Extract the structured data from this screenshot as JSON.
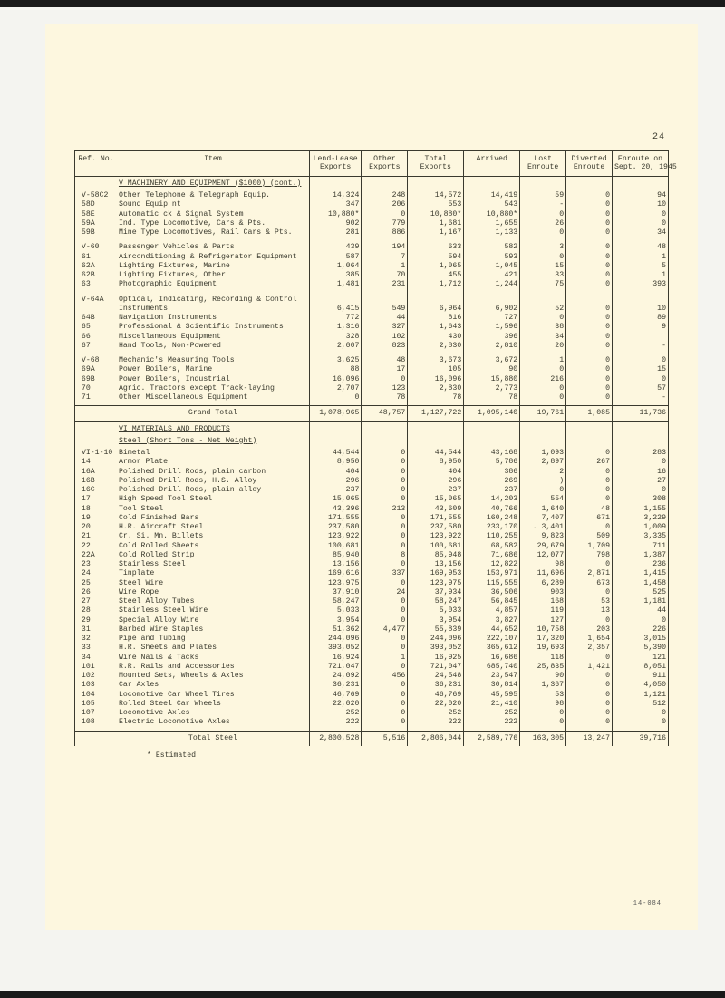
{
  "page_number": "24",
  "doc_no": "14-084",
  "footnote": "* Estimated",
  "columns": [
    "Ref. No.",
    "Item",
    "Lend-Lease\nExports",
    "Other\nExports",
    "Total\nExports",
    "Arrived",
    "Lost\nEnroute",
    "Diverted\nEnroute",
    "Enroute on\nSept. 20, 1945"
  ],
  "section1": "V MACHINERY AND EQUIPMENT ($1000) (cont.)",
  "group1": [
    {
      "ref": "V-58C2",
      "item": "Other Telephone & Telegraph Equip.",
      "v": [
        "14,324",
        "248",
        "14,572",
        "14,419",
        "59",
        "0",
        "94"
      ]
    },
    {
      "ref": "58D",
      "item": "Sound Equip nt",
      "v": [
        "347",
        "206",
        "553",
        "543",
        "-",
        "0",
        "10"
      ]
    },
    {
      "ref": "58E",
      "item": "Automatic    ck & Signal System",
      "v": [
        "10,880*",
        "0",
        "10,880*",
        "10,880*",
        "0",
        "0",
        "0"
      ]
    },
    {
      "ref": "59A",
      "item": "Ind. Type Locomotive, Cars & Pts.",
      "v": [
        "902",
        "779",
        "1,681",
        "1,655",
        "26",
        "0",
        "0"
      ]
    },
    {
      "ref": "59B",
      "item": "Mine Type Locomotives, Rail Cars & Pts.",
      "v": [
        "281",
        "886",
        "1,167",
        "1,133",
        "0",
        "0",
        "34"
      ]
    }
  ],
  "group2": [
    {
      "ref": "V-60",
      "item": "Passenger Vehicles & Parts",
      "v": [
        "439",
        "194",
        "633",
        "582",
        "3",
        "0",
        "48"
      ]
    },
    {
      "ref": "61",
      "item": "Airconditioning & Refrigerator Equipment",
      "v": [
        "587",
        "7",
        "594",
        "593",
        "0",
        "0",
        "1"
      ]
    },
    {
      "ref": "62A",
      "item": "Lighting Fixtures, Marine",
      "v": [
        "1,064",
        "1",
        "1,065",
        "1,045",
        "15",
        "0",
        "5"
      ]
    },
    {
      "ref": "62B",
      "item": "Lighting Fixtures, Other",
      "v": [
        "385",
        "70",
        "455",
        "421",
        "33",
        "0",
        "1"
      ]
    },
    {
      "ref": "63",
      "item": "Photographic Equipment",
      "v": [
        "1,481",
        "231",
        "1,712",
        "1,244",
        "75",
        "0",
        "393"
      ]
    }
  ],
  "group3_head": {
    "ref": "V-64A",
    "item": "Optical, Indicating, Recording & Control"
  },
  "group3": [
    {
      "ref": "",
      "item": "  Instruments",
      "v": [
        "6,415",
        "549",
        "6,964",
        "6,902",
        "52",
        "0",
        "10"
      ]
    },
    {
      "ref": "64B",
      "item": "Navigation Instruments",
      "v": [
        "772",
        "44",
        "816",
        "727",
        "0",
        "0",
        "89"
      ]
    },
    {
      "ref": "65",
      "item": "Professional & Scientific Instruments",
      "v": [
        "1,316",
        "327",
        "1,643",
        "1,596",
        "38",
        "0",
        "9"
      ]
    },
    {
      "ref": "66",
      "item": "Miscellaneous Equipment",
      "v": [
        "328",
        "102",
        "430",
        "396",
        "34",
        "0",
        ""
      ]
    },
    {
      "ref": "67",
      "item": "Hand Tools, Non-Powered",
      "v": [
        "2,007",
        "823",
        "2,830",
        "2,810",
        "20",
        "0",
        "-"
      ]
    }
  ],
  "group4": [
    {
      "ref": "V-68",
      "item": "Mechanic's Measuring Tools",
      "v": [
        "3,625",
        "48",
        "3,673",
        "3,672",
        "1",
        "0",
        "0"
      ]
    },
    {
      "ref": "69A",
      "item": "Power Boilers, Marine",
      "v": [
        "88",
        "17",
        "105",
        "90",
        "0",
        "0",
        "15"
      ]
    },
    {
      "ref": "69B",
      "item": "Power Boilers, Industrial",
      "v": [
        "16,096",
        "0",
        "16,096",
        "15,880",
        "216",
        "0",
        "0"
      ]
    },
    {
      "ref": "70",
      "item": "Agric. Tractors except Track-laying",
      "v": [
        "2,707",
        "123",
        "2,830",
        "2,773",
        "0",
        "0",
        "57"
      ]
    },
    {
      "ref": "71",
      "item": "Other Miscellaneous Equipment",
      "v": [
        "0",
        "78",
        "78",
        "78",
        "0",
        "0",
        "-"
      ]
    }
  ],
  "grand_total": {
    "label": "Grand Total",
    "v": [
      "1,078,965",
      "48,757",
      "1,127,722",
      "1,095,140",
      "19,761",
      "1,085",
      "11,736"
    ]
  },
  "section2": "VI MATERIALS AND PRODUCTS",
  "sub2": "Steel (Short Tons - Net Weight)",
  "steel": [
    {
      "ref": "VI-1-10",
      "item": "Bimetal",
      "v": [
        "44,544",
        "0",
        "44,544",
        "43,168",
        "1,093",
        "0",
        "283"
      ]
    },
    {
      "ref": "14",
      "item": "Armor Plate",
      "v": [
        "8,950",
        "0",
        "8,950",
        "5,786",
        "2,897",
        "267",
        "0"
      ]
    },
    {
      "ref": "16A",
      "item": "Polished Drill Rods, plain carbon",
      "v": [
        "404",
        "0",
        "404",
        "386",
        "2",
        "0",
        "16"
      ]
    },
    {
      "ref": "16B",
      "item": "Polished Drill Rods, H.S. Alloy",
      "v": [
        "296",
        "0",
        "296",
        "269",
        ")",
        "0",
        "27"
      ]
    },
    {
      "ref": "16C",
      "item": "Polished Drill Rods, plain alloy",
      "v": [
        "237",
        "0",
        "237",
        "237",
        "0",
        "0",
        "0"
      ]
    },
    {
      "ref": "17",
      "item": "High Speed Tool Steel",
      "v": [
        "15,065",
        "0",
        "15,065",
        "14,203",
        "554",
        "0",
        "308"
      ]
    },
    {
      "ref": "18",
      "item": "Tool Steel",
      "v": [
        "43,396",
        "213",
        "43,609",
        "40,766",
        "1,640",
        "48",
        "1,155"
      ]
    },
    {
      "ref": "19",
      "item": "Cold Finished Bars",
      "v": [
        "171,555",
        "0",
        "171,555",
        "160,248",
        "7,407",
        "671",
        "3,229"
      ]
    },
    {
      "ref": "20",
      "item": "H.R. Aircraft Steel",
      "v": [
        "237,580",
        "0",
        "237,580",
        "233,170",
        ". 3,401",
        "0",
        "1,009"
      ]
    },
    {
      "ref": "21",
      "item": "Cr. Si. Mn. Billets",
      "v": [
        "123,922",
        "0",
        "123,922",
        "110,255",
        "9,823",
        "509",
        "3,335"
      ]
    },
    {
      "ref": "22",
      "item": "Cold Rolled Sheets",
      "v": [
        "100,681",
        "0",
        "100,681",
        "68,582",
        "29,679",
        "1,709",
        "711"
      ]
    },
    {
      "ref": "22A",
      "item": "Cold Rolled Strip",
      "v": [
        "85,940",
        "8",
        "85,948",
        "71,686",
        "12,077",
        "798",
        "1,387"
      ]
    },
    {
      "ref": "23",
      "item": "Stainless Steel",
      "v": [
        "13,156",
        "0",
        "13,156",
        "12,822",
        "98",
        "0",
        "236"
      ]
    },
    {
      "ref": "24",
      "item": "Tinplate",
      "v": [
        "169,616",
        "337",
        "169,953",
        "153,971",
        "11,696",
        "2,871",
        "1,415"
      ]
    },
    {
      "ref": "25",
      "item": "Steel Wire",
      "v": [
        "123,975",
        "0",
        "123,975",
        "115,555",
        "6,289",
        "673",
        "1,458"
      ]
    },
    {
      "ref": "26",
      "item": "Wire Rope",
      "v": [
        "37,910",
        "24",
        "37,934",
        "36,506",
        "903",
        "0",
        "525"
      ]
    },
    {
      "ref": "27",
      "item": "Steel Alloy Tubes",
      "v": [
        "58,247",
        "0",
        "58,247",
        "56,845",
        "168",
        "53",
        "1,181"
      ]
    },
    {
      "ref": "28",
      "item": "Stainless Steel Wire",
      "v": [
        "5,033",
        "0",
        "5,033",
        "4,857",
        "119",
        "13",
        "44"
      ]
    },
    {
      "ref": "29",
      "item": "Special Alloy Wire",
      "v": [
        "3,954",
        "0",
        "3,954",
        "3,827",
        "127",
        "0",
        "0"
      ]
    },
    {
      "ref": "31",
      "item": "Barbed Wire Staples",
      "v": [
        "51,362",
        "4,477",
        "55,839",
        "44,652",
        "10,758",
        "203",
        "226"
      ]
    },
    {
      "ref": "32",
      "item": "Pipe and Tubing",
      "v": [
        "244,096",
        "0",
        "244,096",
        "222,107",
        "17,320",
        "1,654",
        "3,015"
      ]
    },
    {
      "ref": "33",
      "item": "H.R. Sheets and Plates",
      "v": [
        "393,052",
        "0",
        "393,052",
        "365,612",
        "19,693",
        "2,357",
        "5,390"
      ]
    },
    {
      "ref": "34",
      "item": "Wire Nails & Tacks",
      "v": [
        "16,924",
        "1",
        "16,925",
        "16,686",
        "118",
        "0",
        "121"
      ]
    },
    {
      "ref": "101",
      "item": "R.R. Rails and Accessories",
      "v": [
        "721,047",
        "0",
        "721,047",
        "685,740",
        "25,835",
        "1,421",
        "8,051"
      ]
    },
    {
      "ref": "102",
      "item": "Mounted Sets, Wheels & Axles",
      "v": [
        "24,092",
        "456",
        "24,548",
        "23,547",
        "90",
        "0",
        "911"
      ]
    },
    {
      "ref": "103",
      "item": "Car Axles",
      "v": [
        "36,231",
        "0",
        "36,231",
        "30,814",
        "1,367",
        "0",
        "4,050"
      ]
    },
    {
      "ref": "104",
      "item": "Locomotive Car Wheel Tires",
      "v": [
        "46,769",
        "0",
        "46,769",
        "45,595",
        "53",
        "0",
        "1,121"
      ]
    },
    {
      "ref": "105",
      "item": "Rolled Steel Car Wheels",
      "v": [
        "22,020",
        "0",
        "22,020",
        "21,410",
        "98",
        "0",
        "512"
      ]
    },
    {
      "ref": "107",
      "item": "Locomotive Axles",
      "v": [
        "252",
        "0",
        "252",
        "252",
        "0",
        "0",
        "0"
      ]
    },
    {
      "ref": "108",
      "item": "Electric Locomotive Axles",
      "v": [
        "222",
        "0",
        "222",
        "222",
        "0",
        "0",
        "0"
      ]
    }
  ],
  "steel_total": {
    "label": "Total Steel",
    "v": [
      "2,800,528",
      "5,516",
      "2,806,044",
      "2,589,776",
      "163,305",
      "13,247",
      "39,716"
    ]
  }
}
